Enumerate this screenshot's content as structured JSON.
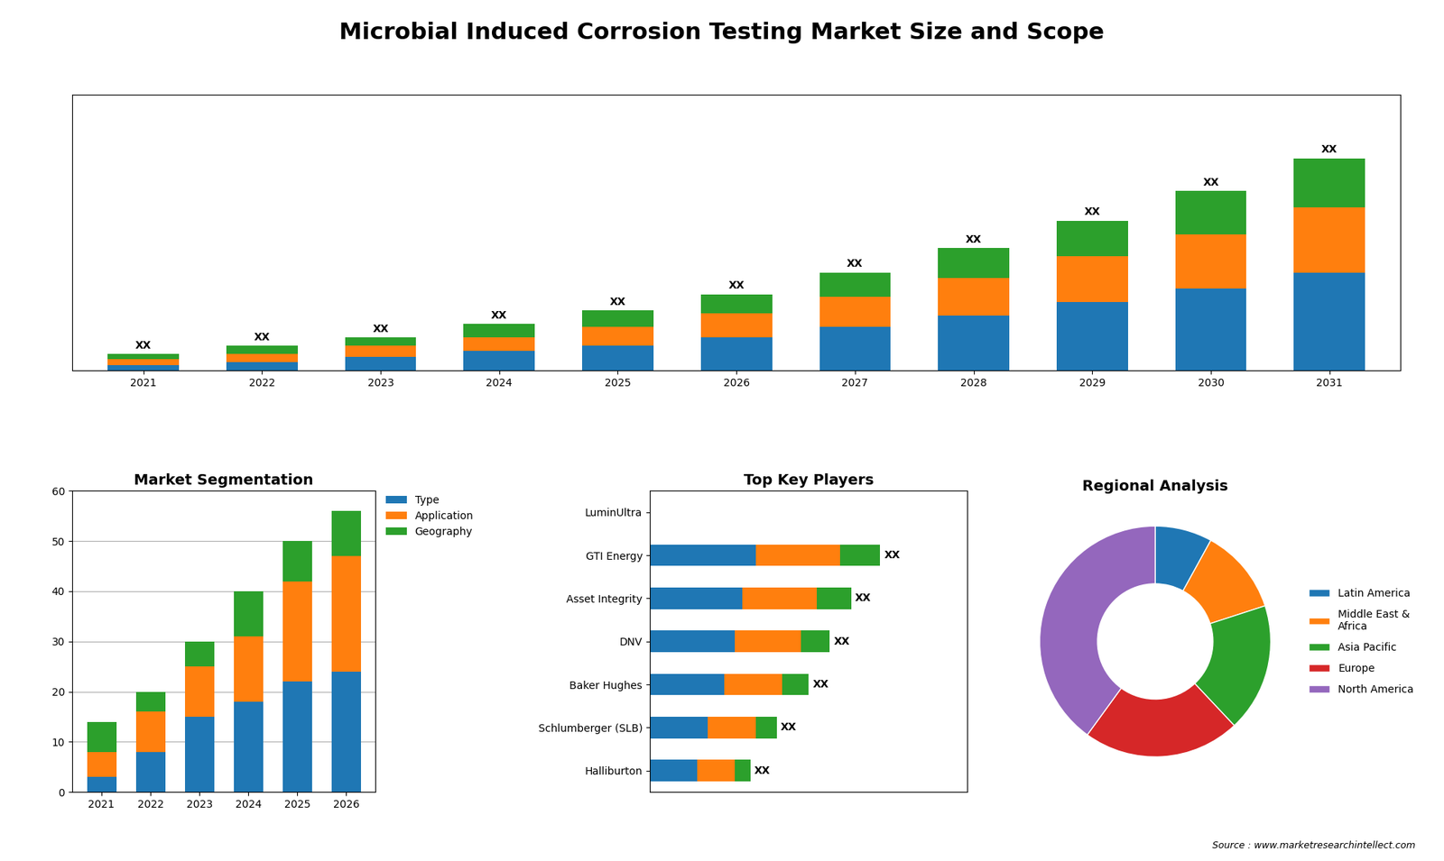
{
  "title": "Microbial Induced Corrosion Testing Market Size and Scope",
  "annotations": [
    "Source : www.marketresearchintellect.com"
  ],
  "chart_data": [
    {
      "type": "bar",
      "stacked": true,
      "tick_labels": "x",
      "categories": [
        "2021",
        "2022",
        "2023",
        "2024",
        "2025",
        "2026",
        "2027",
        "2028",
        "2029",
        "2030",
        "2031"
      ],
      "series": [
        {
          "values": [
            2,
            3,
            5,
            7,
            9,
            12,
            16,
            20,
            25,
            30,
            36
          ]
        },
        {
          "values": [
            2,
            3,
            4,
            5,
            7,
            9,
            11,
            14,
            17,
            20,
            24
          ]
        },
        {
          "values": [
            2,
            3,
            3,
            5,
            6,
            7,
            9,
            11,
            13,
            16,
            18
          ]
        }
      ],
      "annotations": [
        "XX",
        "XX",
        "XX",
        "XX",
        "XX",
        "XX",
        "XX",
        "XX",
        "XX",
        "XX",
        "XX"
      ],
      "ylim": [
        0,
        101.4
      ]
    },
    {
      "type": "bar",
      "stacked": true,
      "title": "Market Segmentation",
      "categories": [
        "2021",
        "2022",
        "2023",
        "2024",
        "2025",
        "2026"
      ],
      "series": [
        {
          "name": "Type",
          "values": [
            3,
            8,
            15,
            18,
            22,
            24
          ]
        },
        {
          "name": "Application",
          "values": [
            5,
            8,
            10,
            13,
            20,
            23
          ]
        },
        {
          "name": "Geography",
          "values": [
            6,
            4,
            5,
            9,
            8,
            9
          ]
        }
      ],
      "ylim": [
        0,
        60
      ],
      "yticks": [
        0,
        10,
        20,
        30,
        40,
        50,
        60
      ],
      "grid": true,
      "legend": "upper left"
    },
    {
      "type": "bar",
      "stacked": true,
      "orientation": "horizontal",
      "tick_labels": "y",
      "title": "Top Key Players",
      "categories": [
        "LuminUltra",
        "GTI Energy",
        "Asset Integrity",
        "DNV",
        "Baker Hughes",
        "Schlumberger (SLB)",
        "Halliburton"
      ],
      "series": [
        {
          "values": [
            0,
            4.0,
            3.5,
            3.2,
            2.8,
            2.2,
            1.8
          ]
        },
        {
          "values": [
            0,
            3.2,
            2.8,
            2.5,
            2.2,
            1.8,
            1.4
          ]
        },
        {
          "values": [
            0,
            1.5,
            1.3,
            1.1,
            1.0,
            0.8,
            0.6
          ]
        }
      ],
      "annotations": [
        null,
        "XX",
        "XX",
        "XX",
        "XX",
        "XX",
        "XX"
      ],
      "xlim": [
        0,
        12
      ]
    },
    {
      "type": "donut",
      "title": "Regional Analysis",
      "categories": [
        "Latin America",
        "Middle East &\nAfrica",
        "Asia Pacific",
        "Europe",
        "North America"
      ],
      "values": [
        8,
        12,
        18,
        22,
        40
      ],
      "legend": "center left"
    }
  ]
}
